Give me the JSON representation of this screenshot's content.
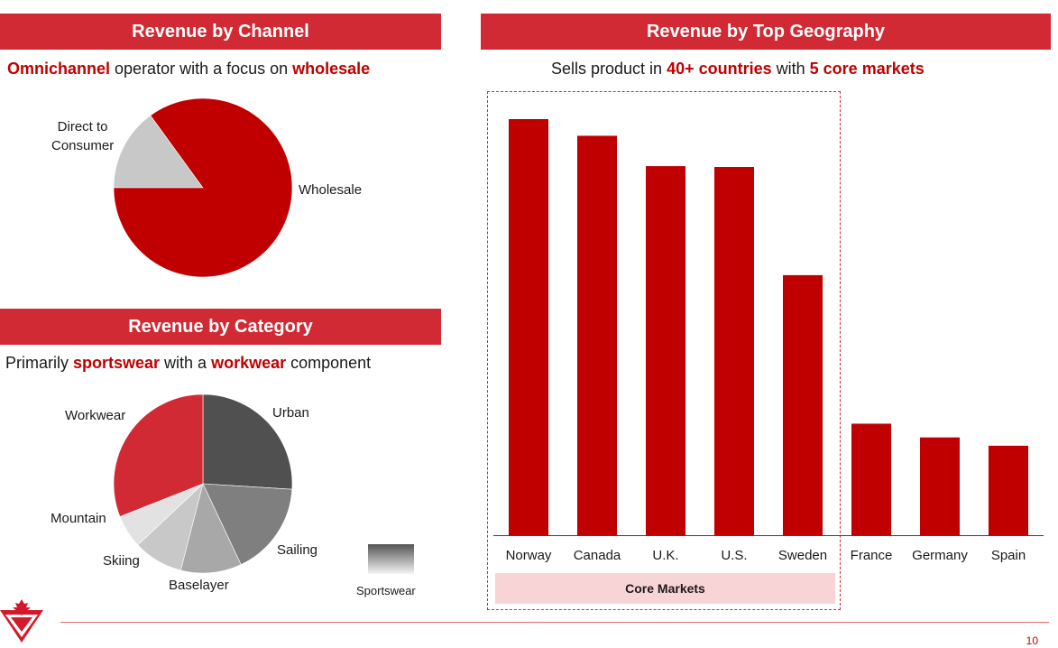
{
  "channel": {
    "banner": "Revenue by Channel",
    "subtitle": [
      {
        "text": "Omnichannel",
        "hl": true
      },
      {
        "text": " operator with a focus on ",
        "hl": false
      },
      {
        "text": "wholesale",
        "hl": true
      }
    ]
  },
  "category": {
    "banner": "Revenue by Category",
    "subtitle": [
      {
        "text": "Primarily ",
        "hl": false
      },
      {
        "text": "sportswear",
        "hl": true
      },
      {
        "text": " with a ",
        "hl": false
      },
      {
        "text": "workwear",
        "hl": true
      },
      {
        "text": " component",
        "hl": false
      }
    ],
    "legend_label": "Sportswear"
  },
  "geography": {
    "banner": "Revenue by Top Geography",
    "subtitle": [
      {
        "text": "Sells product in ",
        "hl": false
      },
      {
        "text": "40+ countries",
        "hl": true
      },
      {
        "text": " with ",
        "hl": false
      },
      {
        "text": "5 core markets",
        "hl": true
      }
    ],
    "core_label": "Core Markets"
  },
  "colors": {
    "accent": "#c00000",
    "banner": "#d12a35",
    "core_box": "#f8d4d6"
  },
  "chart_data": [
    {
      "type": "pie",
      "title": "Revenue by Channel",
      "slices": [
        {
          "label": "Direct to\nConsumer",
          "value": 15,
          "color": "#c8c8c8"
        },
        {
          "label": "Wholesale",
          "value": 85,
          "color": "#c00000"
        }
      ]
    },
    {
      "type": "pie",
      "title": "Revenue by Category",
      "slices": [
        {
          "label": "Urban",
          "value": 26,
          "color": "#505050"
        },
        {
          "label": "Sailing",
          "value": 17,
          "color": "#7f7f7f"
        },
        {
          "label": "Baselayer",
          "value": 11,
          "color": "#a8a8a8"
        },
        {
          "label": "Skiing",
          "value": 9,
          "color": "#c8c8c8"
        },
        {
          "label": "Mountain",
          "value": 6,
          "color": "#e2e2e2"
        },
        {
          "label": "Workwear",
          "value": 31,
          "color": "#d12a35"
        }
      ]
    },
    {
      "type": "bar",
      "title": "Revenue by Top Geography",
      "categories": [
        "Norway",
        "Canada",
        "U.K.",
        "U.S.",
        "Sweden",
        "France",
        "Germany",
        "Spain"
      ],
      "values": [
        100,
        96,
        88.7,
        88.5,
        62.5,
        26.8,
        23.5,
        21.5
      ],
      "core_markets": [
        "Norway",
        "Canada",
        "U.K.",
        "U.S.",
        "Sweden"
      ],
      "ylim": [
        0,
        100
      ],
      "grid": false,
      "color": "#c00000"
    }
  ],
  "page_number": "10"
}
